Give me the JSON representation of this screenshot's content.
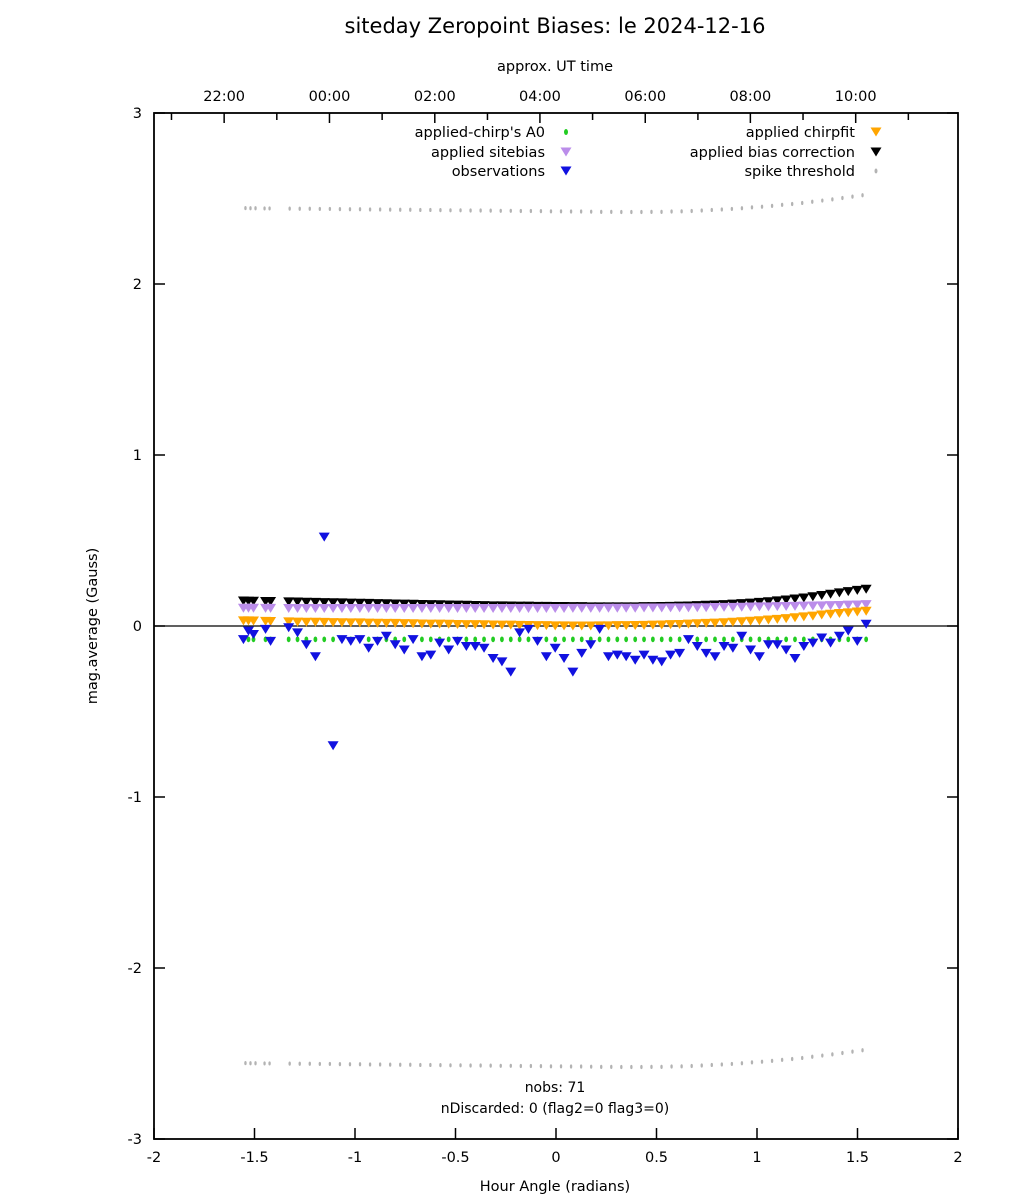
{
  "title": "siteday Zeropoint Biases:  le  2024-12-16",
  "top_axis": {
    "label": "approx. UT time",
    "major_ticks": [
      {
        "label": "22:00",
        "x": -1.651
      },
      {
        "label": "00:00",
        "x": -1.127
      },
      {
        "label": "02:00",
        "x": -0.603
      },
      {
        "label": "04:00",
        "x": -0.08
      },
      {
        "label": "06:00",
        "x": 0.444
      },
      {
        "label": "08:00",
        "x": 0.967
      },
      {
        "label": "10:00",
        "x": 1.491
      }
    ],
    "minor_ticks": [
      -1.913,
      -1.389,
      -0.865,
      -0.341,
      0.182,
      0.706,
      1.229,
      1.753
    ]
  },
  "x_axis": {
    "label": "Hour Angle (radians)",
    "range": [
      -2,
      2
    ],
    "ticks": [
      {
        "label": "-2",
        "x": -2
      },
      {
        "label": "-1.5",
        "x": -1.5
      },
      {
        "label": "-1",
        "x": -1
      },
      {
        "label": "-0.5",
        "x": -0.5
      },
      {
        "label": "0",
        "x": 0
      },
      {
        "label": "0.5",
        "x": 0.5
      },
      {
        "label": "1",
        "x": 1
      },
      {
        "label": "1.5",
        "x": 1.5
      },
      {
        "label": "2",
        "x": 2
      }
    ]
  },
  "y_axis": {
    "label": "mag.average (Gauss)",
    "range": [
      -3,
      3
    ],
    "ticks": [
      {
        "label": "-3",
        "y": -3
      },
      {
        "label": "-2",
        "y": -2
      },
      {
        "label": "-1",
        "y": -1
      },
      {
        "label": "0",
        "y": 0
      },
      {
        "label": "1",
        "y": 1
      },
      {
        "label": "2",
        "y": 2
      },
      {
        "label": "3",
        "y": 3
      }
    ]
  },
  "annotations": {
    "nobs": "nobs: 71",
    "ndiscarded": "nDiscarded: 0  (flag2=0  flag3=0)"
  },
  "legend": {
    "entries": [
      {
        "label": "applied-chirp's A0",
        "marker": "dot",
        "color": "#22cc22"
      },
      {
        "label": "applied sitebias",
        "marker": "triangle",
        "color": "#bb8dea"
      },
      {
        "label": "observations",
        "marker": "triangle",
        "color": "#1111e0"
      },
      {
        "label": "applied chirpfit",
        "marker": "triangle",
        "color": "#ffa500"
      },
      {
        "label": "applied bias correction",
        "marker": "triangle",
        "color": "#000000"
      },
      {
        "label": "spike threshold",
        "marker": "small-dot",
        "color": "#b3b3b3"
      }
    ]
  },
  "chart_data": {
    "type": "scatter",
    "xlabel": "Hour Angle (radians)",
    "ylabel": "mag.average (Gauss)",
    "xlim": [
      -2,
      2
    ],
    "ylim": [
      -3,
      3
    ],
    "nobs": 71,
    "series": [
      {
        "name": "spike threshold (upper)",
        "marker": "small-dot",
        "color": "#b3b3b3",
        "x": [
          -1.545,
          -1.52,
          -1.495,
          -1.45,
          -1.425,
          -1.325,
          -1.275,
          -1.225,
          -1.175,
          -1.125,
          -1.075,
          -1.025,
          -0.975,
          -0.925,
          -0.875,
          -0.825,
          -0.775,
          -0.725,
          -0.675,
          -0.625,
          -0.575,
          -0.525,
          -0.475,
          -0.425,
          -0.375,
          -0.325,
          -0.275,
          -0.225,
          -0.175,
          -0.125,
          -0.075,
          -0.025,
          0.025,
          0.075,
          0.125,
          0.175,
          0.225,
          0.275,
          0.325,
          0.375,
          0.425,
          0.475,
          0.525,
          0.575,
          0.625,
          0.675,
          0.725,
          0.775,
          0.825,
          0.875,
          0.925,
          0.975,
          1.025,
          1.075,
          1.125,
          1.175,
          1.225,
          1.275,
          1.325,
          1.375,
          1.425,
          1.475,
          1.525
        ],
        "y": [
          2.444,
          2.443,
          2.443,
          2.442,
          2.442,
          2.441,
          2.44,
          2.44,
          2.439,
          2.439,
          2.438,
          2.437,
          2.437,
          2.436,
          2.436,
          2.435,
          2.434,
          2.434,
          2.433,
          2.433,
          2.432,
          2.431,
          2.431,
          2.43,
          2.43,
          2.429,
          2.428,
          2.428,
          2.427,
          2.427,
          2.426,
          2.425,
          2.425,
          2.424,
          2.424,
          2.423,
          2.422,
          2.422,
          2.421,
          2.421,
          2.421,
          2.422,
          2.422,
          2.424,
          2.425,
          2.427,
          2.43,
          2.433,
          2.436,
          2.439,
          2.443,
          2.448,
          2.452,
          2.457,
          2.463,
          2.468,
          2.474,
          2.481,
          2.488,
          2.495,
          2.503,
          2.511,
          2.519
        ]
      },
      {
        "name": "spike threshold (lower)",
        "marker": "small-dot",
        "color": "#b3b3b3",
        "x": [
          -1.545,
          -1.52,
          -1.495,
          -1.45,
          -1.425,
          -1.325,
          -1.275,
          -1.225,
          -1.175,
          -1.125,
          -1.075,
          -1.025,
          -0.975,
          -0.925,
          -0.875,
          -0.825,
          -0.775,
          -0.725,
          -0.675,
          -0.625,
          -0.575,
          -0.525,
          -0.475,
          -0.425,
          -0.375,
          -0.325,
          -0.275,
          -0.225,
          -0.175,
          -0.125,
          -0.075,
          -0.025,
          0.025,
          0.075,
          0.125,
          0.175,
          0.225,
          0.275,
          0.325,
          0.375,
          0.425,
          0.475,
          0.525,
          0.575,
          0.625,
          0.675,
          0.725,
          0.775,
          0.825,
          0.875,
          0.925,
          0.975,
          1.025,
          1.075,
          1.125,
          1.175,
          1.225,
          1.275,
          1.325,
          1.375,
          1.425,
          1.475,
          1.525
        ],
        "y": [
          -2.556,
          -2.557,
          -2.557,
          -2.558,
          -2.558,
          -2.559,
          -2.56,
          -2.56,
          -2.561,
          -2.561,
          -2.562,
          -2.563,
          -2.563,
          -2.564,
          -2.564,
          -2.565,
          -2.566,
          -2.566,
          -2.567,
          -2.567,
          -2.568,
          -2.569,
          -2.569,
          -2.57,
          -2.57,
          -2.571,
          -2.572,
          -2.572,
          -2.573,
          -2.573,
          -2.574,
          -2.575,
          -2.575,
          -2.576,
          -2.576,
          -2.577,
          -2.578,
          -2.578,
          -2.579,
          -2.579,
          -2.579,
          -2.578,
          -2.578,
          -2.576,
          -2.575,
          -2.573,
          -2.57,
          -2.567,
          -2.564,
          -2.561,
          -2.557,
          -2.552,
          -2.548,
          -2.543,
          -2.537,
          -2.532,
          -2.526,
          -2.519,
          -2.512,
          -2.505,
          -2.497,
          -2.489,
          -2.481
        ]
      },
      {
        "name": "applied bias correction",
        "marker": "triangle",
        "color": "#000000",
        "x": [
          -1.555,
          -1.53,
          -1.505,
          -1.445,
          -1.42,
          -1.33,
          -1.286,
          -1.242,
          -1.197,
          -1.153,
          -1.109,
          -1.065,
          -1.021,
          -0.976,
          -0.932,
          -0.888,
          -0.844,
          -0.8,
          -0.755,
          -0.711,
          -0.667,
          -0.623,
          -0.579,
          -0.534,
          -0.49,
          -0.446,
          -0.402,
          -0.358,
          -0.313,
          -0.269,
          -0.225,
          -0.181,
          -0.137,
          -0.092,
          -0.048,
          -0.004,
          0.04,
          0.084,
          0.128,
          0.173,
          0.217,
          0.261,
          0.305,
          0.349,
          0.394,
          0.438,
          0.482,
          0.526,
          0.57,
          0.615,
          0.659,
          0.703,
          0.747,
          0.791,
          0.836,
          0.88,
          0.924,
          0.968,
          1.012,
          1.057,
          1.101,
          1.145,
          1.189,
          1.233,
          1.278,
          1.322,
          1.366,
          1.41,
          1.454,
          1.499,
          1.543
        ],
        "y": [
          0.146,
          0.145,
          0.145,
          0.143,
          0.143,
          0.141,
          0.14,
          0.139,
          0.138,
          0.137,
          0.136,
          0.135,
          0.134,
          0.133,
          0.132,
          0.131,
          0.13,
          0.129,
          0.128,
          0.127,
          0.126,
          0.125,
          0.124,
          0.123,
          0.122,
          0.121,
          0.12,
          0.119,
          0.118,
          0.118,
          0.117,
          0.116,
          0.116,
          0.115,
          0.115,
          0.114,
          0.114,
          0.113,
          0.113,
          0.112,
          0.112,
          0.112,
          0.112,
          0.112,
          0.112,
          0.113,
          0.113,
          0.114,
          0.115,
          0.116,
          0.117,
          0.119,
          0.121,
          0.123,
          0.125,
          0.128,
          0.131,
          0.134,
          0.138,
          0.142,
          0.147,
          0.152,
          0.158,
          0.164,
          0.171,
          0.178,
          0.186,
          0.194,
          0.201,
          0.208,
          0.215
        ]
      },
      {
        "name": "applied sitebias",
        "marker": "triangle",
        "color": "#bb8dea",
        "x": [
          -1.555,
          -1.53,
          -1.505,
          -1.445,
          -1.42,
          -1.33,
          -1.286,
          -1.242,
          -1.197,
          -1.153,
          -1.109,
          -1.065,
          -1.021,
          -0.976,
          -0.932,
          -0.888,
          -0.844,
          -0.8,
          -0.755,
          -0.711,
          -0.667,
          -0.623,
          -0.579,
          -0.534,
          -0.49,
          -0.446,
          -0.402,
          -0.358,
          -0.313,
          -0.269,
          -0.225,
          -0.181,
          -0.137,
          -0.092,
          -0.048,
          -0.004,
          0.04,
          0.084,
          0.128,
          0.173,
          0.217,
          0.261,
          0.305,
          0.349,
          0.394,
          0.438,
          0.482,
          0.526,
          0.57,
          0.615,
          0.659,
          0.703,
          0.747,
          0.791,
          0.836,
          0.88,
          0.924,
          0.968,
          1.012,
          1.057,
          1.101,
          1.145,
          1.189,
          1.233,
          1.278,
          1.322,
          1.366,
          1.41,
          1.454,
          1.499,
          1.543
        ],
        "y": [
          0.104,
          0.104,
          0.104,
          0.103,
          0.103,
          0.102,
          0.102,
          0.102,
          0.102,
          0.102,
          0.102,
          0.102,
          0.102,
          0.102,
          0.102,
          0.102,
          0.102,
          0.102,
          0.102,
          0.102,
          0.102,
          0.102,
          0.102,
          0.102,
          0.102,
          0.102,
          0.102,
          0.102,
          0.102,
          0.102,
          0.102,
          0.102,
          0.102,
          0.102,
          0.102,
          0.102,
          0.102,
          0.103,
          0.103,
          0.103,
          0.103,
          0.104,
          0.104,
          0.104,
          0.104,
          0.105,
          0.105,
          0.105,
          0.106,
          0.106,
          0.106,
          0.107,
          0.107,
          0.108,
          0.109,
          0.109,
          0.11,
          0.111,
          0.112,
          0.112,
          0.113,
          0.114,
          0.115,
          0.116,
          0.117,
          0.118,
          0.119,
          0.12,
          0.122,
          0.123,
          0.125
        ]
      },
      {
        "name": "applied chirpfit",
        "marker": "triangle",
        "color": "#ffa500",
        "x": [
          -1.555,
          -1.53,
          -1.505,
          -1.445,
          -1.42,
          -1.33,
          -1.286,
          -1.242,
          -1.197,
          -1.153,
          -1.109,
          -1.065,
          -1.021,
          -0.976,
          -0.932,
          -0.888,
          -0.844,
          -0.8,
          -0.755,
          -0.711,
          -0.667,
          -0.623,
          -0.579,
          -0.534,
          -0.49,
          -0.446,
          -0.402,
          -0.358,
          -0.313,
          -0.269,
          -0.225,
          -0.181,
          -0.137,
          -0.092,
          -0.048,
          -0.004,
          0.04,
          0.084,
          0.128,
          0.173,
          0.217,
          0.261,
          0.305,
          0.349,
          0.394,
          0.438,
          0.482,
          0.526,
          0.57,
          0.615,
          0.659,
          0.703,
          0.747,
          0.791,
          0.836,
          0.88,
          0.924,
          0.968,
          1.012,
          1.057,
          1.101,
          1.145,
          1.189,
          1.233,
          1.278,
          1.322,
          1.366,
          1.41,
          1.454,
          1.499,
          1.543
        ],
        "y": [
          0.03,
          0.03,
          0.029,
          0.027,
          0.026,
          0.024,
          0.023,
          0.022,
          0.022,
          0.021,
          0.02,
          0.019,
          0.018,
          0.018,
          0.017,
          0.016,
          0.015,
          0.015,
          0.014,
          0.013,
          0.012,
          0.011,
          0.011,
          0.01,
          0.009,
          0.008,
          0.008,
          0.007,
          0.006,
          0.005,
          0.005,
          0.004,
          0.003,
          0.002,
          0.002,
          0.001,
          0.001,
          0.0,
          0.0,
          0.0,
          0.001,
          0.001,
          0.002,
          0.002,
          0.003,
          0.004,
          0.005,
          0.006,
          0.008,
          0.009,
          0.011,
          0.013,
          0.015,
          0.017,
          0.019,
          0.022,
          0.025,
          0.028,
          0.031,
          0.035,
          0.039,
          0.043,
          0.048,
          0.053,
          0.058,
          0.064,
          0.069,
          0.073,
          0.077,
          0.082,
          0.086
        ]
      },
      {
        "name": "applied-chirp's A0",
        "marker": "dot",
        "color": "#22cc22",
        "x": [
          -1.555,
          -1.53,
          -1.505,
          -1.445,
          -1.42,
          -1.33,
          -1.286,
          -1.242,
          -1.197,
          -1.153,
          -1.109,
          -1.065,
          -1.021,
          -0.976,
          -0.932,
          -0.888,
          -0.844,
          -0.8,
          -0.755,
          -0.711,
          -0.667,
          -0.623,
          -0.579,
          -0.534,
          -0.49,
          -0.446,
          -0.402,
          -0.358,
          -0.313,
          -0.269,
          -0.225,
          -0.181,
          -0.137,
          -0.092,
          -0.048,
          -0.004,
          0.04,
          0.084,
          0.128,
          0.173,
          0.217,
          0.261,
          0.305,
          0.349,
          0.394,
          0.438,
          0.482,
          0.526,
          0.57,
          0.615,
          0.659,
          0.703,
          0.747,
          0.791,
          0.836,
          0.88,
          0.924,
          0.968,
          1.012,
          1.057,
          1.101,
          1.145,
          1.189,
          1.233,
          1.278,
          1.322,
          1.366,
          1.41,
          1.454,
          1.499,
          1.543
        ],
        "y_const": -0.078
      },
      {
        "name": "observations",
        "marker": "triangle",
        "color": "#1111e0",
        "x": [
          -1.555,
          -1.53,
          -1.505,
          -1.445,
          -1.42,
          -1.33,
          -1.286,
          -1.242,
          -1.197,
          -1.153,
          -1.109,
          -1.065,
          -1.021,
          -0.976,
          -0.932,
          -0.888,
          -0.844,
          -0.8,
          -0.755,
          -0.711,
          -0.667,
          -0.623,
          -0.579,
          -0.534,
          -0.49,
          -0.446,
          -0.402,
          -0.358,
          -0.313,
          -0.269,
          -0.225,
          -0.181,
          -0.137,
          -0.092,
          -0.048,
          -0.004,
          0.04,
          0.084,
          0.128,
          0.173,
          0.217,
          0.261,
          0.305,
          0.349,
          0.394,
          0.438,
          0.482,
          0.526,
          0.57,
          0.615,
          0.659,
          0.703,
          0.747,
          0.791,
          0.836,
          0.88,
          0.924,
          0.968,
          1.012,
          1.057,
          1.101,
          1.145,
          1.189,
          1.233,
          1.278,
          1.322,
          1.366,
          1.41,
          1.454,
          1.499,
          1.543
        ],
        "y": [
          -0.08,
          -0.03,
          -0.05,
          -0.02,
          -0.09,
          -0.01,
          -0.04,
          -0.11,
          -0.18,
          0.52,
          -0.7,
          -0.08,
          -0.09,
          -0.08,
          -0.13,
          -0.09,
          -0.06,
          -0.11,
          -0.14,
          -0.08,
          -0.18,
          -0.17,
          -0.1,
          -0.14,
          -0.09,
          -0.12,
          -0.12,
          -0.13,
          -0.19,
          -0.21,
          -0.27,
          -0.04,
          -0.02,
          -0.09,
          -0.18,
          -0.13,
          -0.19,
          -0.27,
          -0.16,
          -0.11,
          -0.02,
          -0.18,
          -0.17,
          -0.18,
          -0.2,
          -0.17,
          -0.2,
          -0.21,
          -0.17,
          -0.16,
          -0.08,
          -0.12,
          -0.16,
          -0.18,
          -0.12,
          -0.13,
          -0.06,
          -0.14,
          -0.18,
          -0.11,
          -0.11,
          -0.14,
          -0.19,
          -0.12,
          -0.1,
          -0.07,
          -0.1,
          -0.06,
          -0.03,
          -0.09,
          0.01
        ]
      }
    ]
  }
}
